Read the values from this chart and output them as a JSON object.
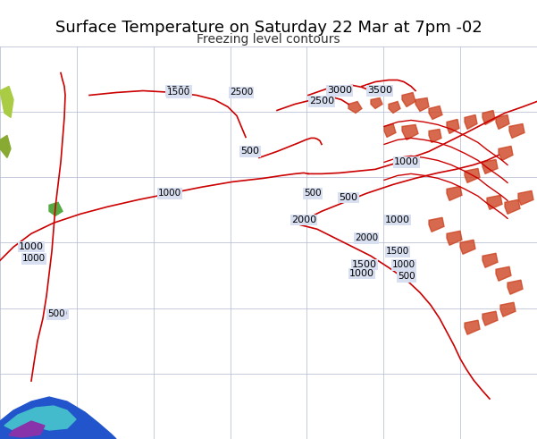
{
  "title": "Surface Temperature on Saturday 22 Mar at 7pm -02",
  "subtitle": "Freezing level contours",
  "bg_color": "#dde3f0",
  "map_bg": "#d8dff0",
  "grid_color": "#b0b8d0",
  "contour_color": "#cc0000",
  "title_fontsize": 13,
  "subtitle_fontsize": 10,
  "figsize": [
    6.01,
    4.91
  ],
  "dpi": 100
}
